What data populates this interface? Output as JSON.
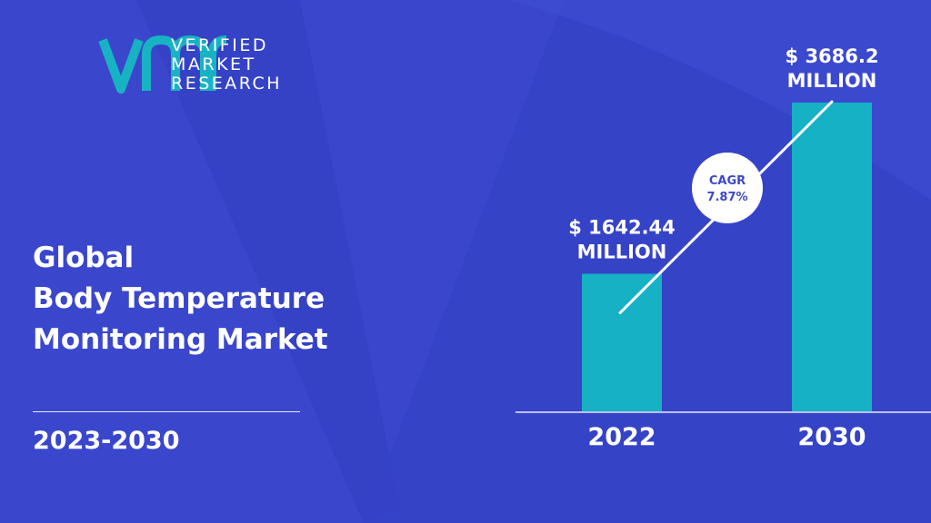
{
  "brand": {
    "logo_lines": [
      "VERIFIED",
      "MARKET",
      "RESEARCH"
    ]
  },
  "title_lines": [
    "Global",
    "Body Temperature",
    "Monitoring Market"
  ],
  "period": "2023-2030",
  "colors": {
    "background": "#3a47cc",
    "bar": "#16b1c4",
    "logo_accent": "#18b3c3",
    "cagr_text": "#3b49c8"
  },
  "chart_data": {
    "type": "bar",
    "categories": [
      "2022",
      "2030"
    ],
    "values": [
      1642.44,
      3686.2
    ],
    "value_labels": [
      [
        "$ 1642.44",
        "MILLION"
      ],
      [
        "$ 3686.2",
        "MILLION"
      ]
    ],
    "cagr_label": [
      "CAGR",
      "7.87%"
    ],
    "ylim": [
      0,
      3686.2
    ],
    "grid": false,
    "legend": "none"
  }
}
